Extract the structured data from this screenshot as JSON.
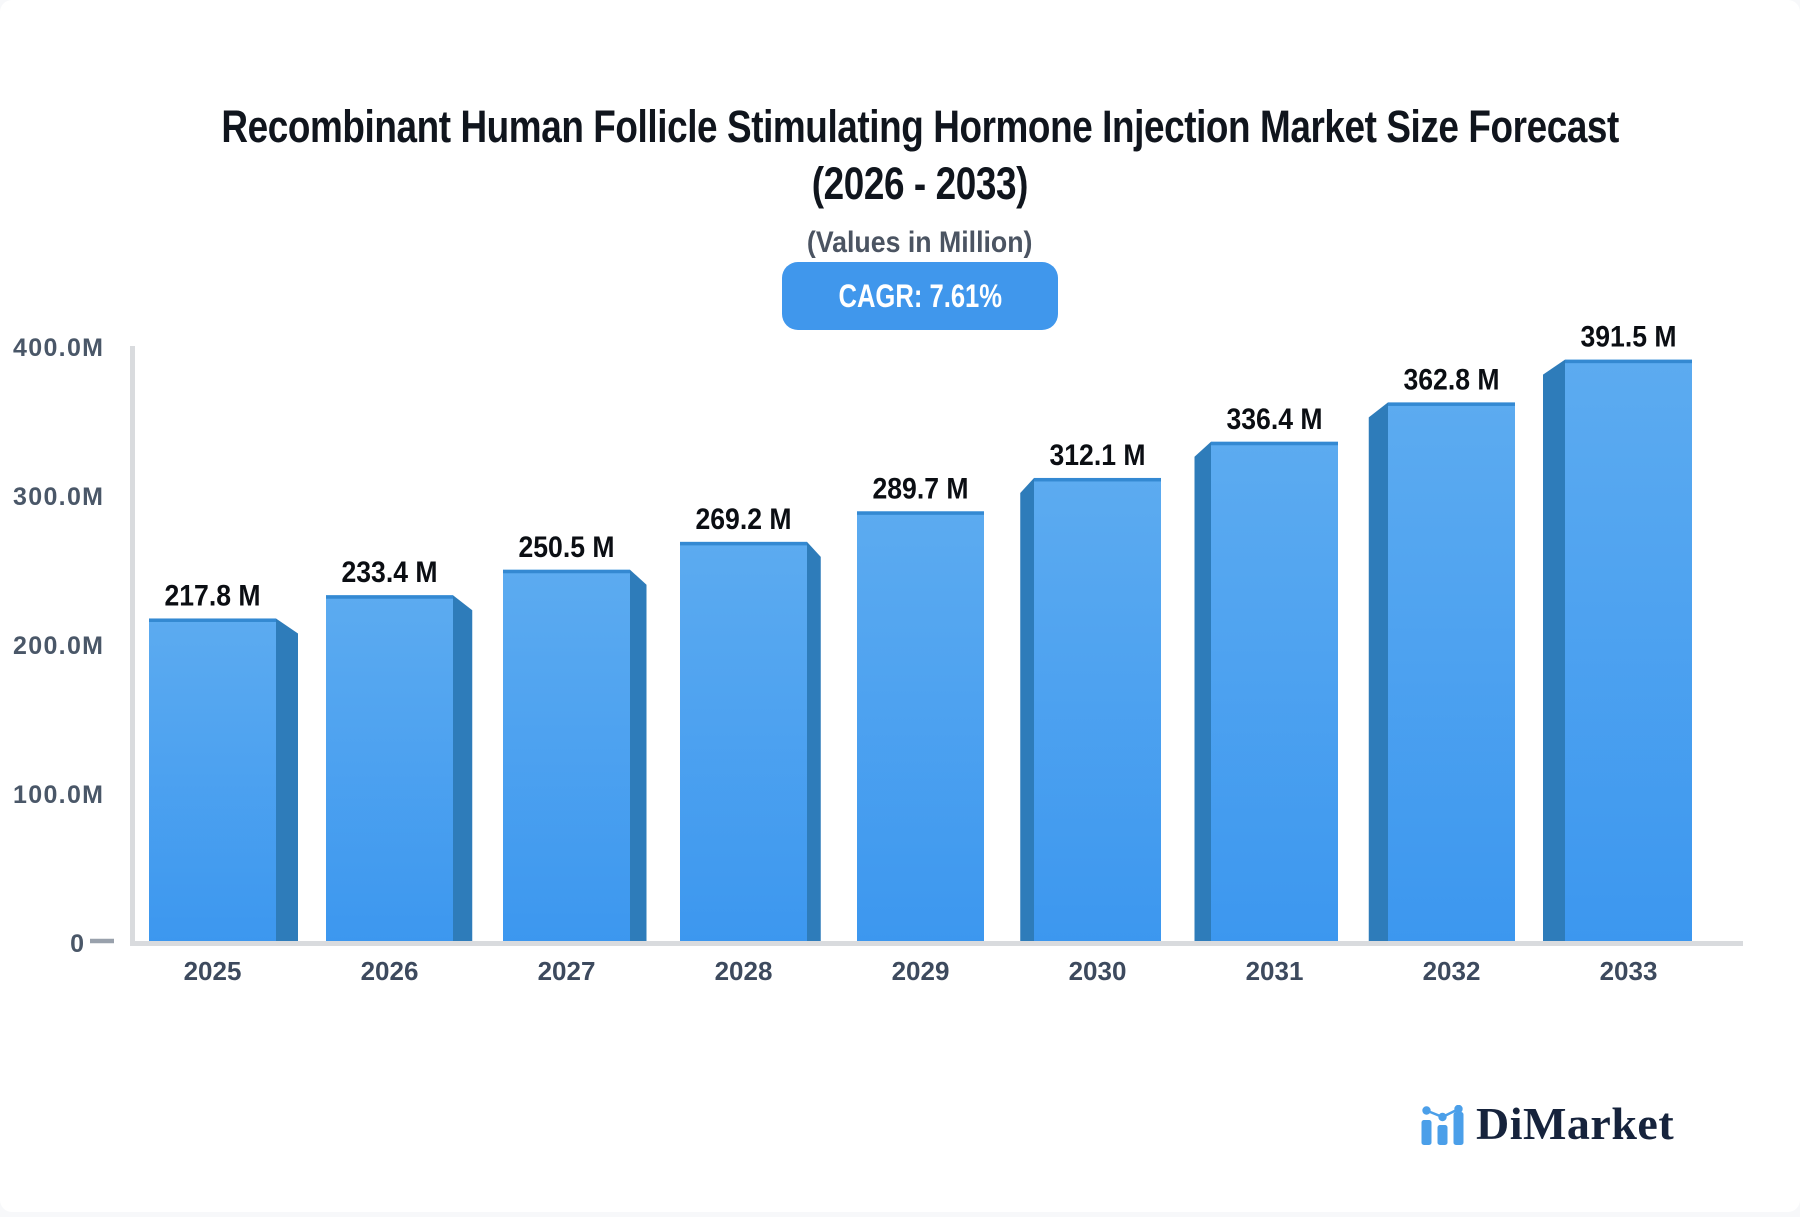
{
  "header": {
    "title_line1": "Recombinant Human Follicle Stimulating Hormone Injection Market Size Forecast",
    "title_line2": "(2026 - 2033)",
    "subtitle": "(Values in Million)",
    "cagr_badge": "CAGR: 7.61%"
  },
  "chart_data": {
    "type": "bar",
    "title": "Recombinant Human Follicle Stimulating Hormone Injection Market Size Forecast (2026 - 2033)",
    "subtitle": "(Values in Million)",
    "cagr_pct": 7.61,
    "unit": "Million",
    "categories": [
      "2025",
      "2026",
      "2027",
      "2028",
      "2029",
      "2030",
      "2031",
      "2032",
      "2033"
    ],
    "values": [
      217.8,
      233.4,
      250.5,
      269.2,
      289.7,
      312.1,
      336.4,
      362.8,
      391.5
    ],
    "value_labels": [
      "217.8 M",
      "233.4 M",
      "250.5 M",
      "269.2 M",
      "289.7 M",
      "312.1 M",
      "336.4 M",
      "362.8 M",
      "391.5 M"
    ],
    "y_ticks": [
      {
        "value": 400,
        "label": "400.0M"
      },
      {
        "value": 300,
        "label": "300.0M"
      },
      {
        "value": 200,
        "label": "200.0M"
      },
      {
        "value": 100,
        "label": "100.0M"
      },
      {
        "value": 0,
        "label": "0"
      }
    ],
    "ylim": [
      0,
      400
    ],
    "grid": false,
    "legend_position": "none",
    "xlabel": "",
    "ylabel": ""
  },
  "colors": {
    "bar_face_top": "#5cabf0",
    "bar_face_bottom": "#3c97ef",
    "bar_side": "#2e7cba",
    "bar_top_edge": "#3489d2",
    "axis_line": "#d9dbde",
    "tick_dash": "#99a1ac",
    "y_tick_text": "#4a5768",
    "x_tick_text": "#3d4a5e",
    "value_label_text": "#0b0e13",
    "badge_bg": "#4097ec",
    "logo_icon": "#4b9fe9"
  },
  "branding": {
    "logo_text": "DiMarket",
    "logo_icon": "bar-line-chart-icon"
  }
}
